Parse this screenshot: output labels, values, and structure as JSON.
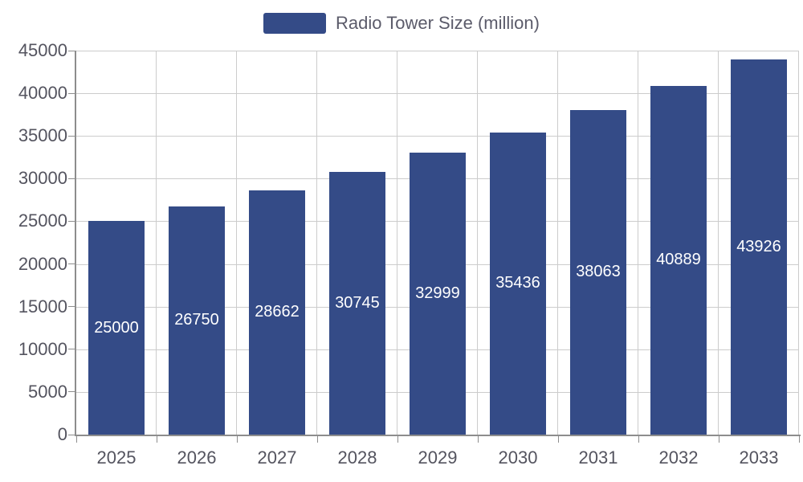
{
  "legend": {
    "label": "Radio Tower Size (million)",
    "swatch_color": "#344b87"
  },
  "chart_data": {
    "type": "bar",
    "title": "Radio Tower Size (million)",
    "series_name": "Radio Tower Size (million)",
    "categories": [
      "2025",
      "2026",
      "2027",
      "2028",
      "2029",
      "2030",
      "2031",
      "2032",
      "2033"
    ],
    "values": [
      25000,
      26750,
      28662,
      30745,
      32999,
      35436,
      38063,
      40889,
      43926
    ],
    "xlabel": "",
    "ylabel": "",
    "ylim": [
      0,
      45000
    ],
    "ytick_step": 5000,
    "grid": true,
    "legend_position": "top",
    "bar_color": "#344b87",
    "bar_label_color": "#ffffff"
  }
}
